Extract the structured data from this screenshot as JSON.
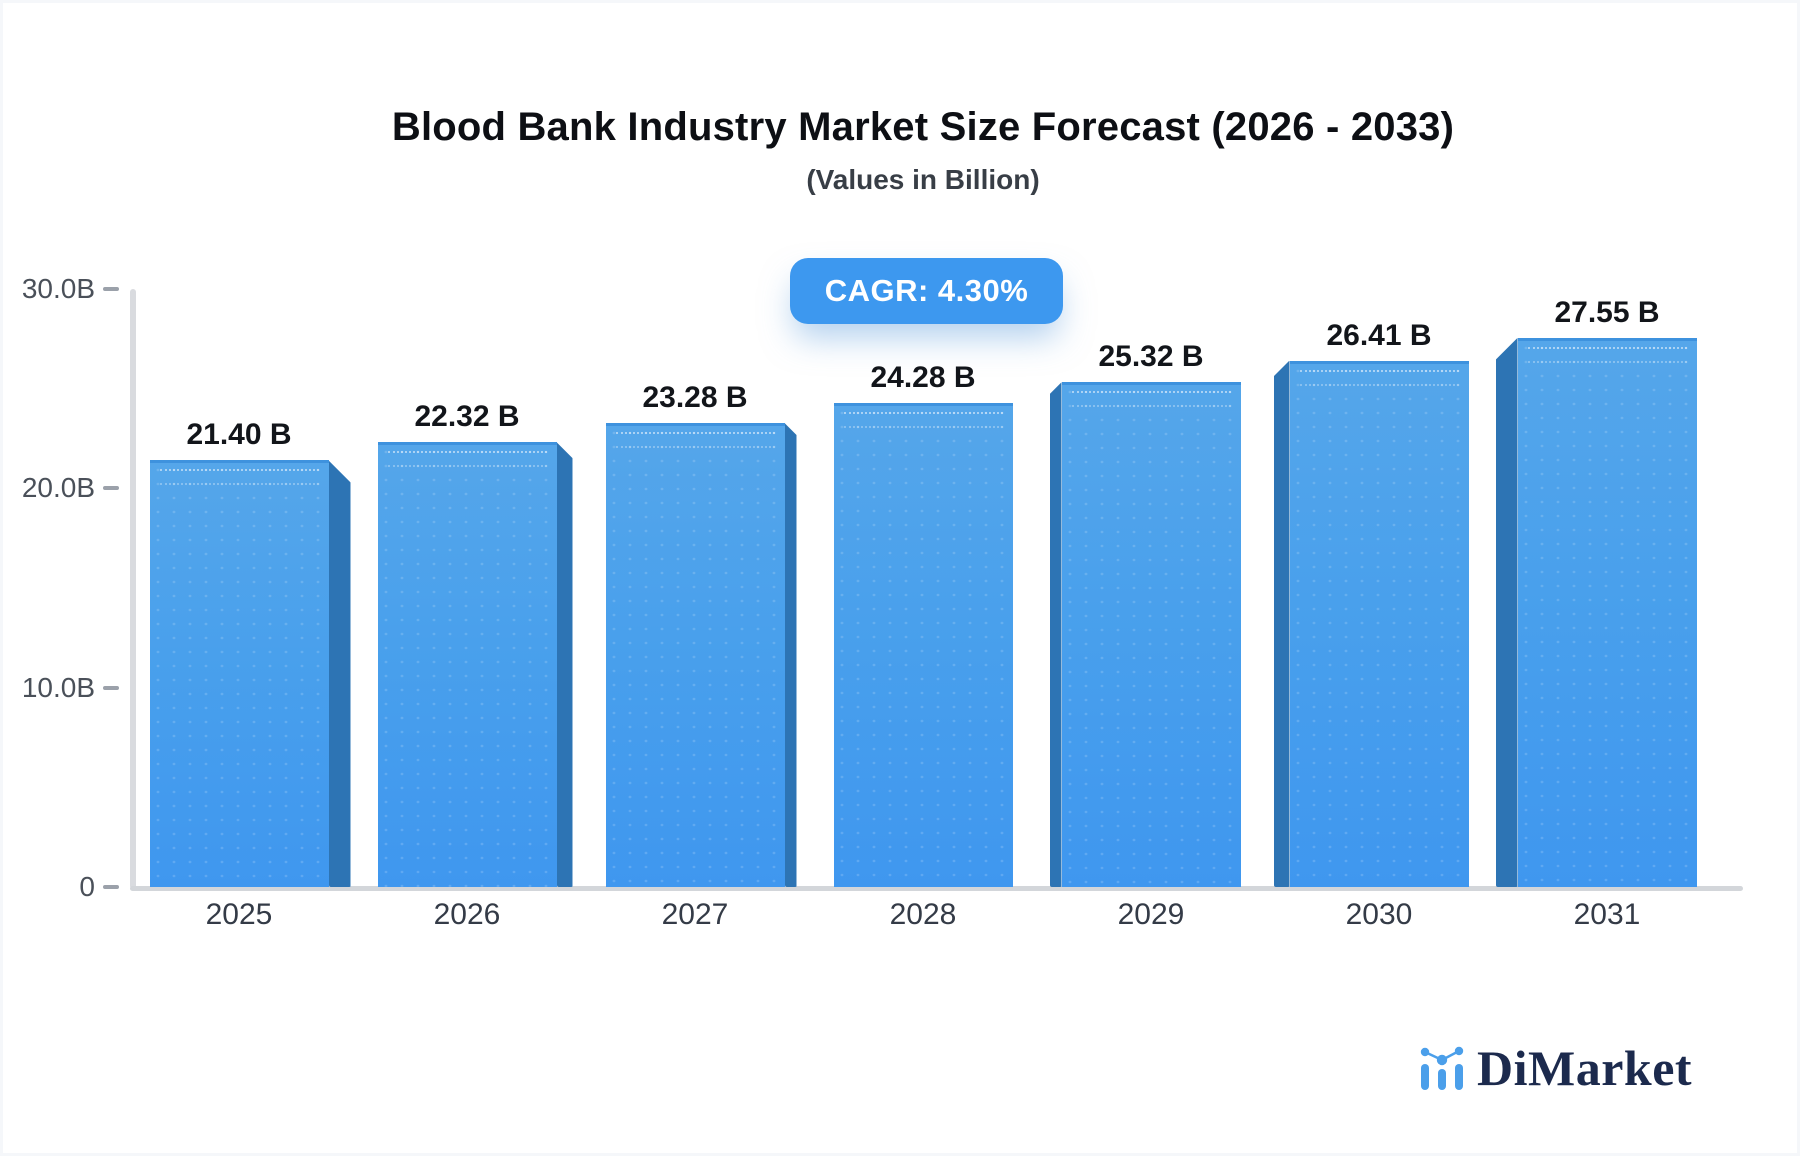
{
  "header": {
    "title": "Blood Bank Industry Market Size Forecast (2026 - 2033)",
    "subtitle": "(Values in Billion)"
  },
  "badge": {
    "label": "CAGR: 4.30%",
    "background_color": "#3d98ef",
    "text_color": "#ffffff"
  },
  "chart_data": {
    "type": "bar",
    "title": "Blood Bank Industry Market Size Forecast (2026 - 2033)",
    "subtitle": "(Values in Billion)",
    "categories": [
      "2025",
      "2026",
      "2027",
      "2028",
      "2029",
      "2030",
      "2031"
    ],
    "values": [
      21.4,
      22.32,
      23.28,
      24.28,
      25.32,
      26.41,
      27.55
    ],
    "bar_labels": [
      "21.40 B",
      "22.32 B",
      "23.28 B",
      "24.28 B",
      "25.32 B",
      "26.41 B",
      "27.55 B"
    ],
    "xlabel": "",
    "ylabel": "",
    "ylim": [
      0,
      30
    ],
    "y_ticks": [
      {
        "value": 0,
        "label": "0"
      },
      {
        "value": 10,
        "label": "10.0B"
      },
      {
        "value": 20,
        "label": "20.0B"
      },
      {
        "value": 30,
        "label": "30.0B"
      }
    ],
    "grid": false,
    "legend": false,
    "bar_color": "#4BA0EC",
    "bar_side_color": "#2D74B4",
    "style": "3d-bars, perspective toward center bar"
  },
  "branding": {
    "logo_text": "DiMarket",
    "logo_icon": "bar-chart-logo-icon",
    "logo_icon_color": "#4b9fea",
    "logo_text_color": "#1c2a4d"
  }
}
